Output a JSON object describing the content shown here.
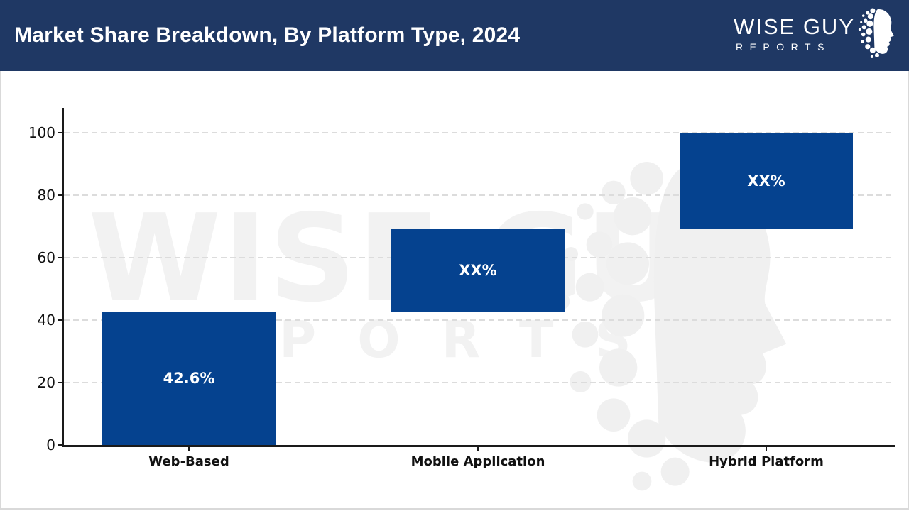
{
  "header": {
    "title": "Market Share Breakdown, By Platform Type, 2024",
    "bg_color": "#1f3864",
    "logo": {
      "line1": "WISE GUY",
      "line2": "REPORTS"
    }
  },
  "watermark": {
    "line1": "WISE GUY",
    "line2": "REPORTS"
  },
  "chart_data": {
    "type": "bar",
    "variant": "floating-waterfall",
    "title": "Market Share Breakdown, By Platform Type, 2024",
    "categories": [
      "Web-Based",
      "Mobile Application",
      "Hybrid Platform"
    ],
    "series": [
      {
        "name": "Market Share (%)",
        "segments": [
          {
            "category": "Web-Based",
            "start": 0,
            "end": 42.6,
            "label": "42.6%"
          },
          {
            "category": "Mobile Application",
            "start": 42.6,
            "end": 69,
            "label": "XX%"
          },
          {
            "category": "Hybrid Platform",
            "start": 69,
            "end": 100,
            "label": "XX%"
          }
        ]
      }
    ],
    "xlabel": "",
    "ylabel": "",
    "ylim": [
      0,
      100
    ],
    "yticks": [
      0,
      20,
      40,
      60,
      80,
      100
    ],
    "grid": "horizontal-dashed",
    "legend": "none",
    "bar_color": "#05428f",
    "grid_color": "#dcdcdc",
    "axis_color": "#1a1a1a",
    "value_label_color": "#ffffff"
  }
}
